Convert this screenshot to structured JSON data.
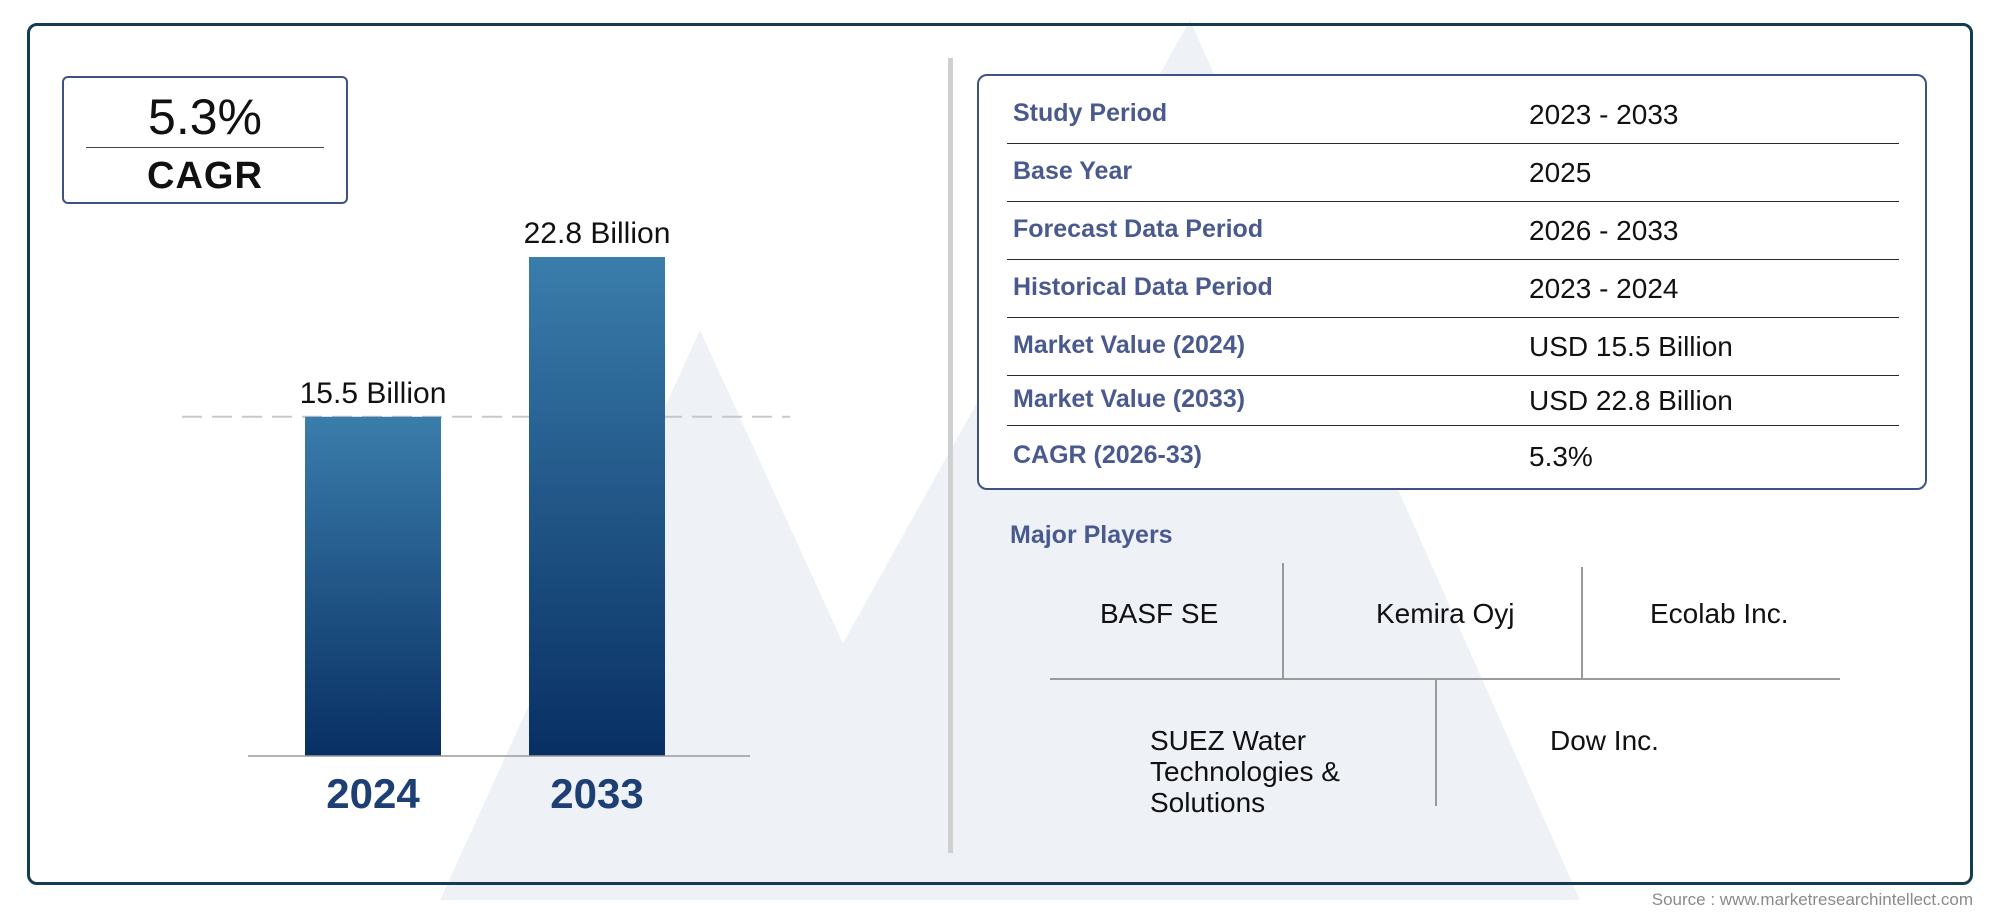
{
  "cagr": {
    "value": "5.3%",
    "label": "CAGR"
  },
  "chart_data": {
    "type": "bar",
    "categories": [
      "2024",
      "2033"
    ],
    "values": [
      15.5,
      22.8
    ],
    "data_labels": [
      "15.5 Billion",
      "22.8 Billion"
    ],
    "ylim": [
      0,
      22.8
    ],
    "colors": {
      "bar_top": "#3a7dab",
      "bar_bottom": "#082f63",
      "category_text": "#1d3f73"
    }
  },
  "table": {
    "rows": [
      {
        "key": "Study Period",
        "value": "2023 - 2033"
      },
      {
        "key": "Base Year",
        "value": "2025"
      },
      {
        "key": "Forecast Data Period",
        "value": "2026 - 2033"
      },
      {
        "key": "Historical Data Period",
        "value": "2023 - 2024"
      },
      {
        "key": "Market Value (2024)",
        "value": "USD 15.5 Billion"
      },
      {
        "key": "Market Value (2033)",
        "value": "USD 22.8 Billion"
      },
      {
        "key": "CAGR (2026-33)",
        "value": "5.3%"
      }
    ]
  },
  "players": {
    "title": "Major Players",
    "items": [
      "BASF SE",
      "Kemira Oyj",
      "Ecolab Inc.",
      "SUEZ Water Technologies & Solutions",
      "Dow Inc."
    ]
  },
  "source": "Source : www.marketresearchintellect.com"
}
